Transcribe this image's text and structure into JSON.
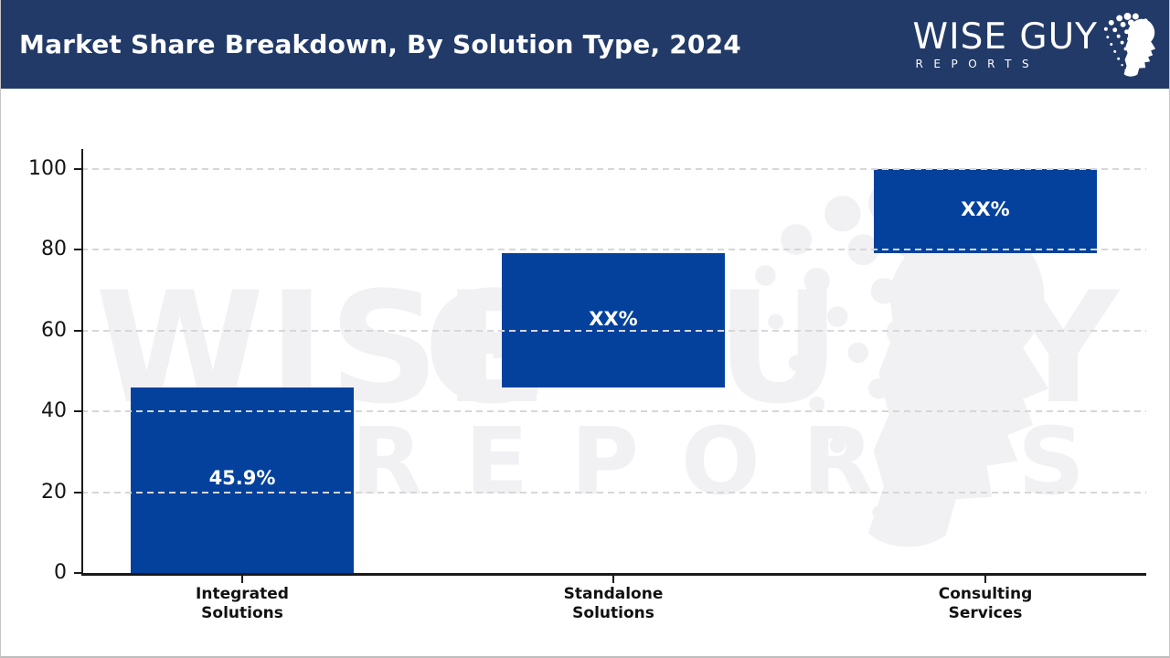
{
  "header": {
    "title": "Market Share Breakdown, By Solution Type, 2024"
  },
  "logo": {
    "line1": "WISE GUY",
    "line2": "REPORTS"
  },
  "watermark": {
    "word1": "WISE",
    "word2": "G U Y",
    "word3": "REPORTS"
  },
  "colors": {
    "header_bg": "#223a67",
    "bar_blue": "#04419d",
    "bar_label": "#ffffff",
    "grid": "#d7d7d7",
    "axis": "#1a1a1a",
    "watermark": "#f1f1f4"
  },
  "chart_data": {
    "type": "bar",
    "subtype": "waterfall",
    "title": "Market Share Breakdown, By Solution Type, 2024",
    "categories": [
      "Integrated Solutions",
      "Standalone Solutions",
      "Consulting Services"
    ],
    "category_lines": [
      [
        "Integrated",
        "Solutions"
      ],
      [
        "Standalone",
        "Solutions"
      ],
      [
        "Consulting",
        "Services"
      ]
    ],
    "segments": [
      {
        "category": "Integrated Solutions",
        "start": 0,
        "end": 45.9,
        "value": 45.9,
        "label": "45.9%"
      },
      {
        "category": "Standalone Solutions",
        "start": 45.9,
        "end": 79.0,
        "value": 33.1,
        "label": "XX%"
      },
      {
        "category": "Consulting Services",
        "start": 79.0,
        "end": 99.8,
        "value": 20.8,
        "label": "XX%"
      }
    ],
    "yticks": [
      0,
      20,
      40,
      60,
      80,
      100
    ],
    "ylim": [
      0,
      105
    ],
    "xlabel": "",
    "ylabel": "",
    "grid": "dashed-horizontal-over-bars",
    "legend": "none",
    "bar_color": "#04419d",
    "label_color": "#ffffff"
  }
}
